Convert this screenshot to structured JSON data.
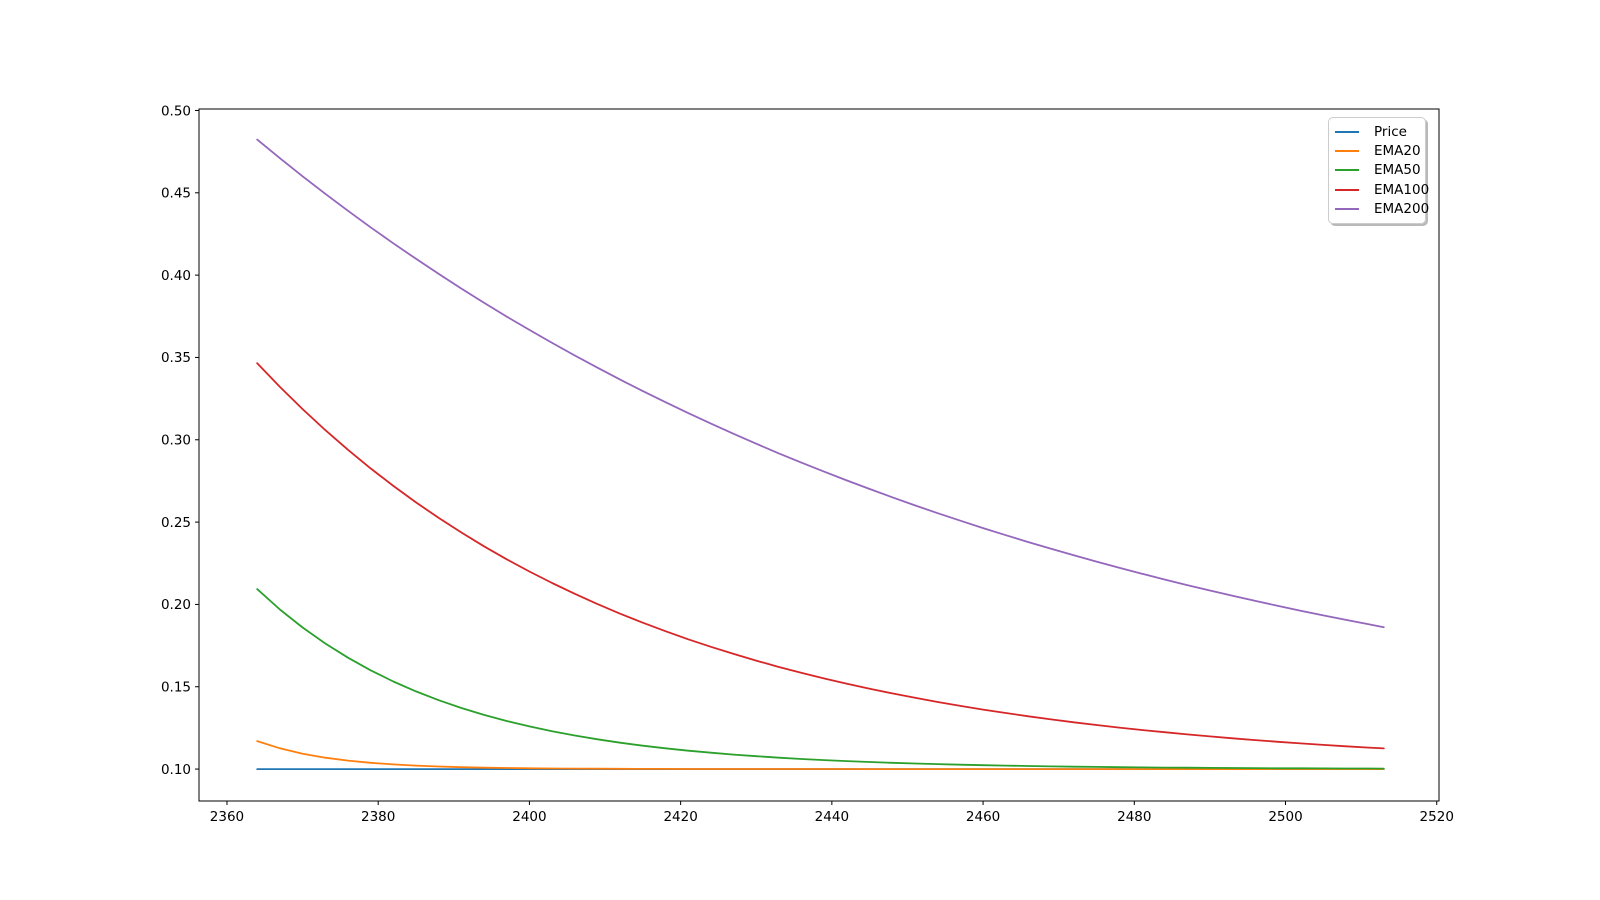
{
  "chart_data": {
    "type": "line",
    "title": "",
    "xlabel": "",
    "ylabel": "",
    "grid": false,
    "legend_position": "upper right",
    "xlim": [
      2356.3,
      2520.3
    ],
    "ylim": [
      0.0806,
      0.5009
    ],
    "x_ticks": {
      "values": [
        2360,
        2380,
        2400,
        2420,
        2440,
        2460,
        2480,
        2500,
        2520
      ],
      "labels": [
        "2360",
        "2380",
        "2400",
        "2420",
        "2440",
        "2460",
        "2480",
        "2500",
        "2520"
      ]
    },
    "y_ticks": {
      "values": [
        0.1,
        0.15,
        0.2,
        0.25,
        0.3,
        0.35,
        0.4,
        0.45,
        0.5
      ],
      "labels": [
        "0.10",
        "0.15",
        "0.20",
        "0.25",
        "0.30",
        "0.35",
        "0.40",
        "0.45",
        "0.50"
      ]
    },
    "x": [
      2364,
      2367,
      2370,
      2373,
      2376,
      2379,
      2382,
      2385,
      2388,
      2391,
      2394,
      2397,
      2400,
      2403,
      2406,
      2409,
      2412,
      2415,
      2418,
      2421,
      2424,
      2427,
      2430,
      2433,
      2436,
      2439,
      2442,
      2445,
      2448,
      2451,
      2454,
      2457,
      2460,
      2463,
      2466,
      2469,
      2472,
      2475,
      2478,
      2481,
      2484,
      2487,
      2490,
      2493,
      2496,
      2499,
      2502,
      2505,
      2508,
      2511,
      2513
    ],
    "series": [
      {
        "name": "Price",
        "color": "#1f77b4",
        "values": [
          0.1,
          0.1,
          0.1,
          0.1,
          0.1,
          0.1,
          0.1,
          0.1,
          0.1,
          0.1,
          0.1,
          0.1,
          0.1,
          0.1,
          0.1,
          0.1,
          0.1,
          0.1,
          0.1,
          0.1,
          0.1,
          0.1,
          0.1,
          0.1,
          0.1,
          0.1,
          0.1,
          0.1,
          0.1,
          0.1,
          0.1,
          0.1,
          0.1,
          0.1,
          0.1,
          0.1,
          0.1,
          0.1,
          0.1,
          0.1,
          0.1,
          0.1,
          0.1,
          0.1,
          0.1,
          0.1,
          0.1,
          0.1,
          0.1,
          0.1,
          0.1
        ]
      },
      {
        "name": "EMA20",
        "color": "#ff7f0e",
        "values": [
          0.117,
          0.11259,
          0.10933,
          0.10691,
          0.10512,
          0.10379,
          0.10281,
          0.10208,
          0.10154,
          0.10114,
          0.10084,
          0.10063,
          0.10046,
          0.10034,
          0.10025,
          0.10019,
          0.10014,
          0.1001,
          0.10008,
          0.10006,
          0.10004,
          0.10003,
          0.10002,
          0.10002,
          0.10001,
          0.10001,
          0.10001,
          0.1,
          0.1,
          0.1,
          0.1,
          0.1,
          0.1,
          0.1,
          0.1,
          0.1,
          0.1,
          0.1,
          0.1,
          0.1,
          0.1,
          0.1,
          0.1,
          0.1,
          0.1,
          0.1,
          0.1,
          0.1,
          0.1,
          0.1,
          0.1
        ]
      },
      {
        "name": "EMA50",
        "color": "#2ca02c",
        "values": [
          0.2093,
          0.19694,
          0.18598,
          0.17625,
          0.16763,
          0.15998,
          0.1532,
          0.14718,
          0.14184,
          0.13711,
          0.13291,
          0.12919,
          0.12589,
          0.12296,
          0.12036,
          0.11806,
          0.11602,
          0.11421,
          0.1126,
          0.11117,
          0.10991,
          0.10879,
          0.1078,
          0.10691,
          0.10613,
          0.10544,
          0.10482,
          0.10428,
          0.10379,
          0.10337,
          0.10299,
          0.10265,
          0.10235,
          0.10208,
          0.10185,
          0.10164,
          0.10145,
          0.10129,
          0.10114,
          0.10101,
          0.1009,
          0.1008,
          0.10071,
          0.10063,
          0.10056,
          0.10049,
          0.10044,
          0.10039,
          0.10034,
          0.10031,
          0.10028
        ]
      },
      {
        "name": "EMA100",
        "color": "#d62728",
        "values": [
          0.3465,
          0.33214,
          0.31863,
          0.30589,
          0.2939,
          0.28261,
          0.27198,
          0.26196,
          0.25253,
          0.24365,
          0.23528,
          0.2274,
          0.21998,
          0.213,
          0.20642,
          0.20022,
          0.19438,
          0.18889,
          0.18371,
          0.17884,
          0.17424,
          0.16992,
          0.16585,
          0.16201,
          0.1584,
          0.155,
          0.1518,
          0.14878,
          0.14594,
          0.14327,
          0.14075,
          0.13837,
          0.13614,
          0.13403,
          0.13205,
          0.13019,
          0.12843,
          0.12677,
          0.12521,
          0.12375,
          0.12236,
          0.12106,
          0.11983,
          0.11868,
          0.11759,
          0.11657,
          0.1156,
          0.11469,
          0.11384,
          0.11303,
          0.11252
        ]
      },
      {
        "name": "EMA200",
        "color": "#9467bd",
        "values": [
          0.4823,
          0.471,
          0.46004,
          0.4494,
          0.43907,
          0.42905,
          0.41932,
          0.40989,
          0.40073,
          0.39184,
          0.38322,
          0.37484,
          0.36672,
          0.35884,
          0.35119,
          0.34377,
          0.33656,
          0.32957,
          0.32279,
          0.3162,
          0.30981,
          0.30361,
          0.29759,
          0.29175,
          0.28609,
          0.28059,
          0.27525,
          0.27007,
          0.26504,
          0.26016,
          0.25543,
          0.25084,
          0.24638,
          0.24205,
          0.23785,
          0.23378,
          0.22983,
          0.22599,
          0.22227,
          0.21865,
          0.21514,
          0.21174,
          0.20844,
          0.20524,
          0.20213,
          0.19911,
          0.19618,
          0.19333,
          0.19058,
          0.1879,
          0.18616
        ]
      }
    ]
  }
}
